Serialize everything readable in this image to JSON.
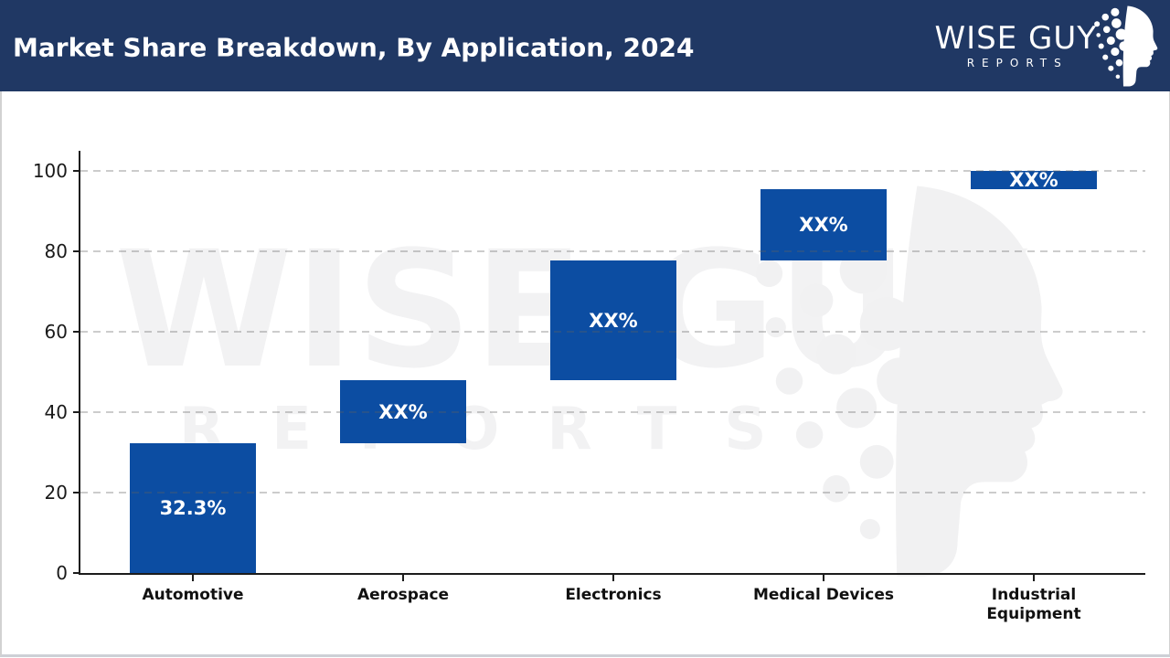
{
  "header": {
    "title": "Market Share Breakdown, By Application, 2024",
    "bg_color": "#203864",
    "logo": {
      "line1": "WISE GUY",
      "line2": "REPORTS"
    }
  },
  "watermark": {
    "line1": "WISE GUY",
    "line2": "REPORTS"
  },
  "chart_data": {
    "type": "bar",
    "subtype": "waterfall",
    "title": "Market Share Breakdown, By Application, 2024",
    "categories": [
      "Automotive",
      "Aerospace",
      "Electronics",
      "Medical Devices",
      "Industrial Equipment"
    ],
    "bars": [
      {
        "category": "Automotive",
        "start": 0,
        "end": 32.3,
        "label": "32.3%"
      },
      {
        "category": "Aerospace",
        "start": 32.3,
        "end": 47.9,
        "label": "XX%"
      },
      {
        "category": "Electronics",
        "start": 47.9,
        "end": 77.7,
        "label": "XX%"
      },
      {
        "category": "Medical Devices",
        "start": 77.7,
        "end": 95.5,
        "label": "XX%"
      },
      {
        "category": "Industrial Equipment",
        "start": 95.5,
        "end": 100,
        "label": "XX%"
      }
    ],
    "xlabel": "",
    "ylabel": "",
    "ylim": [
      0,
      105
    ],
    "yticks": [
      0,
      20,
      40,
      60,
      80,
      100
    ],
    "grid": "horizontal-dashed",
    "legend": "none",
    "bar_color": "#0c4da2",
    "bar_label_color": "#ffffff",
    "axis_color": "#1c1c1c",
    "grid_color": "rgba(95,95,95,0.32)"
  }
}
